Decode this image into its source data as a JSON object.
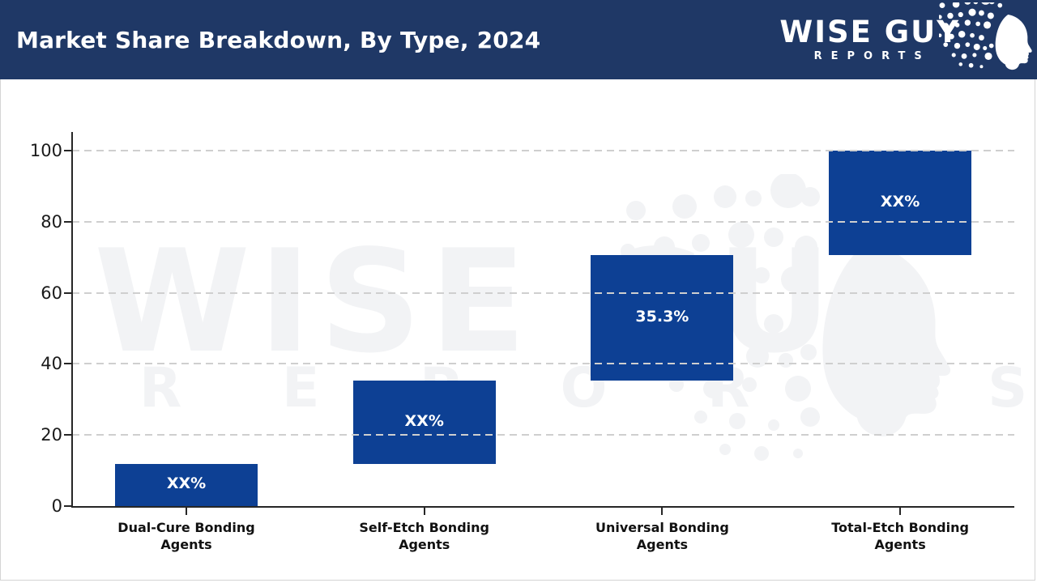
{
  "header": {
    "title": "Market Share Breakdown, By Type, 2024",
    "brand": {
      "line1": "WISE GUY",
      "line2": "REPORTS"
    }
  },
  "watermark": {
    "line1": "WISE GU",
    "line2": "R E P O R T S"
  },
  "colors": {
    "header_bg": "#1f3866",
    "header_text": "#ffffff",
    "bar": "#0d4094",
    "bar_label": "#ffffff",
    "grid": "#cfcfcf",
    "axis": "#262626",
    "watermark": "#f2f3f5"
  },
  "chart_data": {
    "type": "bar",
    "subtype": "waterfall",
    "title": "Market Share Breakdown, By Type, 2024",
    "categories": [
      "Dual-Cure Bonding Agents",
      "Self-Etch Bonding Agents",
      "Universal Bonding Agents",
      "Total-Etch Bonding Agents"
    ],
    "segments": [
      {
        "category": "Dual-Cure Bonding Agents",
        "start": 0,
        "end": 11.8,
        "value_label": "XX%"
      },
      {
        "category": "Self-Etch Bonding Agents",
        "start": 11.8,
        "end": 35.3,
        "value_label": "XX%"
      },
      {
        "category": "Universal Bonding Agents",
        "start": 35.3,
        "end": 70.6,
        "value_label": "35.3%"
      },
      {
        "category": "Total-Etch Bonding Agents",
        "start": 70.6,
        "end": 100,
        "value_label": "XX%"
      }
    ],
    "known_values": {
      "Universal Bonding Agents": 35.3
    },
    "yticks": [
      0,
      20,
      40,
      60,
      80,
      100
    ],
    "ylim": [
      0,
      105
    ],
    "xlabel": "",
    "ylabel": "",
    "grid": "horizontal-dashed",
    "legend": "none"
  }
}
